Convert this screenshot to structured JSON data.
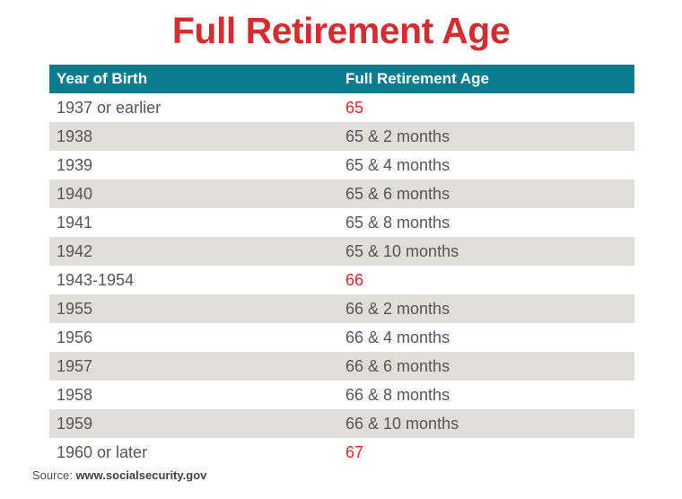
{
  "title": "Full Retirement Age",
  "chart_data": {
    "type": "table",
    "title": "Full Retirement Age",
    "columns": [
      "Year of Birth",
      "Full Retirement Age"
    ],
    "rows": [
      {
        "year_of_birth": "1937 or earlier",
        "full_retirement_age": "65",
        "accent": true
      },
      {
        "year_of_birth": "1938",
        "full_retirement_age": "65 & 2 months",
        "accent": false
      },
      {
        "year_of_birth": "1939",
        "full_retirement_age": "65 & 4 months",
        "accent": false
      },
      {
        "year_of_birth": "1940",
        "full_retirement_age": "65 & 6 months",
        "accent": false
      },
      {
        "year_of_birth": "1941",
        "full_retirement_age": "65 & 8 months",
        "accent": false
      },
      {
        "year_of_birth": "1942",
        "full_retirement_age": "65 & 10 months",
        "accent": false
      },
      {
        "year_of_birth": "1943-1954",
        "full_retirement_age": "66",
        "accent": true
      },
      {
        "year_of_birth": "1955",
        "full_retirement_age": "66 & 2 months",
        "accent": false
      },
      {
        "year_of_birth": "1956",
        "full_retirement_age": "66 & 4 months",
        "accent": false
      },
      {
        "year_of_birth": "1957",
        "full_retirement_age": "66 & 6 months",
        "accent": false
      },
      {
        "year_of_birth": "1958",
        "full_retirement_age": "66 & 8 months",
        "accent": false
      },
      {
        "year_of_birth": "1959",
        "full_retirement_age": "66 & 10 months",
        "accent": false
      },
      {
        "year_of_birth": "1960 or later",
        "full_retirement_age": "67",
        "accent": true
      }
    ],
    "legend_position": "none",
    "grid": false
  },
  "source": {
    "label": "Source:",
    "value": "www.socialsecurity.gov"
  },
  "colors": {
    "accent_red": "#d22d32",
    "header_teal": "#0a7c8b",
    "row_stripe": "#e1ded7",
    "body_text": "#55565b",
    "header_text": "#ffffff"
  }
}
